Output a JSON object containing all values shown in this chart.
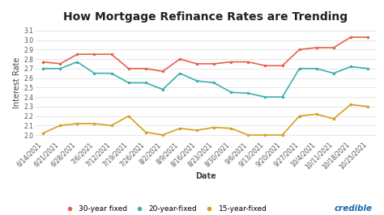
{
  "title": "How Mortgage Refinance Rates are Trending",
  "xlabel": "Date",
  "ylabel": "Interest Rate",
  "dates": [
    "6/14/2021",
    "6/21/2021",
    "6/28/2021",
    "7/6/2021",
    "7/12/2021",
    "7/19/2021",
    "7/26/2021",
    "8/2/2021",
    "8/9/2021",
    "8/16/2021",
    "8/23/2021",
    "8/30/2021",
    "9/6/2021",
    "9/13/2021",
    "9/20/2021",
    "9/27/2021",
    "10/4/2021",
    "10/11/2021",
    "10/18/2021",
    "10/25/2021"
  ],
  "series_30yr": [
    2.77,
    2.75,
    2.85,
    2.85,
    2.85,
    2.7,
    2.7,
    2.67,
    2.8,
    2.75,
    2.75,
    2.77,
    2.77,
    2.73,
    2.73,
    2.9,
    2.92,
    2.92,
    3.03,
    3.03
  ],
  "series_20yr": [
    2.7,
    2.7,
    2.77,
    2.65,
    2.65,
    2.55,
    2.55,
    2.48,
    2.65,
    2.57,
    2.55,
    2.45,
    2.44,
    2.4,
    2.4,
    2.7,
    2.7,
    2.65,
    2.72,
    2.7
  ],
  "series_15yr": [
    2.02,
    2.1,
    2.12,
    2.12,
    2.1,
    2.2,
    2.03,
    2.0,
    2.07,
    2.05,
    2.08,
    2.07,
    2.0,
    2.0,
    2.0,
    2.2,
    2.22,
    2.17,
    2.32,
    2.3
  ],
  "color_30yr": "#e8614a",
  "color_20yr": "#3aafaf",
  "color_15yr": "#d4a020",
  "ylim": [
    1.95,
    3.15
  ],
  "yticks": [
    2.0,
    2.1,
    2.2,
    2.3,
    2.4,
    2.5,
    2.6,
    2.7,
    2.8,
    2.9,
    3.0,
    3.1
  ],
  "background_color": "#ffffff",
  "legend_labels": [
    "30-year fixed",
    "20-year-fixed",
    "15-year-fixed"
  ],
  "credible_color": "#1a6aaa",
  "title_fontsize": 10,
  "axis_label_fontsize": 7,
  "tick_fontsize": 5.5,
  "legend_fontsize": 6.5
}
